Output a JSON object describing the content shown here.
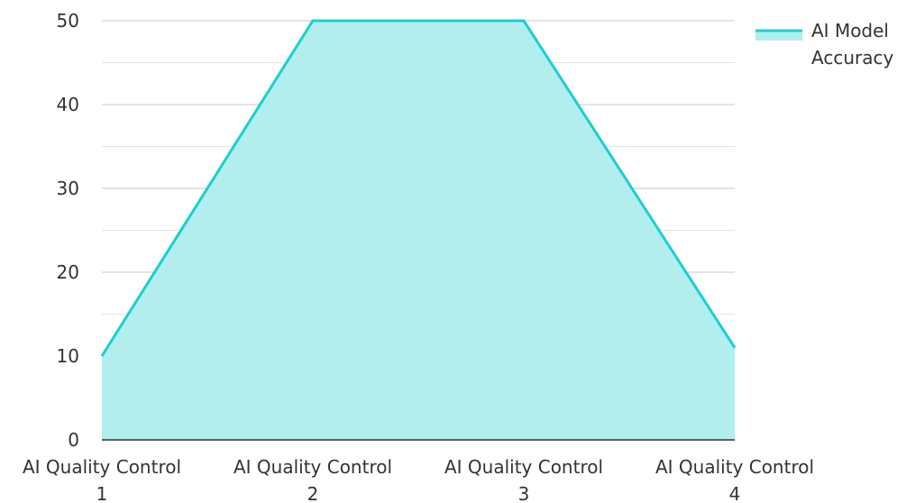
{
  "chart_data": {
    "type": "area",
    "title": "",
    "xlabel": "",
    "ylabel": "",
    "categories": [
      [
        "AI Quality Control",
        "1"
      ],
      [
        "AI Quality Control",
        "2"
      ],
      [
        "AI Quality Control",
        "3"
      ],
      [
        "AI Quality Control",
        "4"
      ]
    ],
    "series": [
      {
        "name": [
          "AI Model",
          "Accuracy"
        ],
        "values": [
          10,
          50,
          50,
          11
        ],
        "line_color": "#1ccfcf",
        "fill_color": "#b2eeee"
      }
    ],
    "ylim": [
      0,
      50
    ],
    "yticks": [
      "0",
      "10",
      "20",
      "30",
      "40",
      "50"
    ],
    "grid": true,
    "legend_position": "top-right"
  }
}
